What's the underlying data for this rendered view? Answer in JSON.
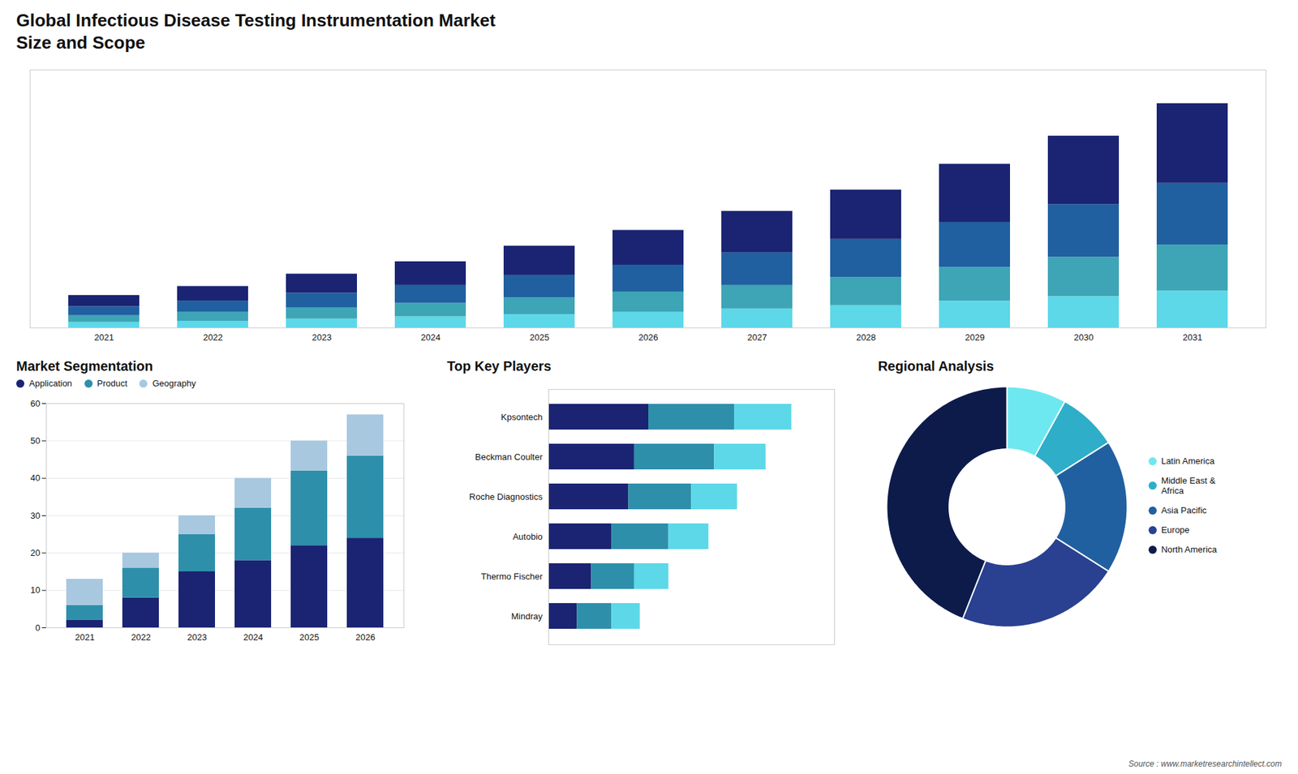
{
  "title": "Global Infectious Disease Testing Instrumentation Market",
  "subtitle": "Size and Scope",
  "annotations": [
    "Source : www.marketresearchintellect.com"
  ],
  "chart_data": [
    {
      "type": "bar",
      "stacked": true,
      "categories": [
        "2021",
        "2022",
        "2023",
        "2024",
        "2025",
        "2026",
        "2027",
        "2028",
        "2029",
        "2030",
        "2031"
      ],
      "series": [
        {
          "color": "#5dd8e8",
          "values": [
            0.5,
            0.6,
            0.8,
            1.0,
            1.2,
            1.4,
            1.7,
            2.0,
            2.4,
            2.8,
            3.3
          ]
        },
        {
          "color": "#3da5b5",
          "values": [
            0.6,
            0.8,
            1.0,
            1.2,
            1.5,
            1.8,
            2.1,
            2.5,
            3.0,
            3.5,
            4.1
          ]
        },
        {
          "color": "#2060a0",
          "values": [
            0.8,
            1.0,
            1.3,
            1.6,
            2.0,
            2.4,
            2.9,
            3.4,
            4.0,
            4.7,
            5.5
          ]
        },
        {
          "color": "#1a2472",
          "values": [
            1.0,
            1.3,
            1.7,
            2.1,
            2.6,
            3.1,
            3.7,
            4.4,
            5.2,
            6.1,
            7.1
          ]
        }
      ],
      "ylim": [
        0,
        23
      ],
      "tick_labels": "x"
    },
    {
      "type": "bar",
      "title": "Market Segmentation",
      "stacked": true,
      "categories": [
        "2021",
        "2022",
        "2023",
        "2024",
        "2025",
        "2026"
      ],
      "series": [
        {
          "name": "Application",
          "color": "#1a2472",
          "values": [
            2,
            8,
            15,
            18,
            22,
            24
          ]
        },
        {
          "name": "Product",
          "color": "#2e8faa",
          "values": [
            4,
            8,
            10,
            14,
            20,
            22
          ]
        },
        {
          "name": "Geography",
          "color": "#a8c8e0",
          "values": [
            7,
            4,
            5,
            8,
            8,
            11
          ]
        }
      ],
      "ylim": [
        0,
        60
      ],
      "yticks": [
        0,
        10,
        20,
        30,
        40,
        50,
        60
      ],
      "grid": true,
      "legend": "top"
    },
    {
      "type": "bar",
      "title": "Top Key Players",
      "orientation": "horizontal",
      "stacked": true,
      "categories": [
        "Kpsontech",
        "Beckman Coulter",
        "Roche Diagnostics",
        "Autobio",
        "Thermo Fischer",
        "Mindray"
      ],
      "series": [
        {
          "color": "#1a2472",
          "values": [
            35,
            30,
            28,
            22,
            15,
            10
          ]
        },
        {
          "color": "#2e8faa",
          "values": [
            30,
            28,
            22,
            20,
            15,
            12
          ]
        },
        {
          "color": "#5dd8e8",
          "values": [
            20,
            18,
            16,
            14,
            12,
            10
          ]
        }
      ],
      "xlim": [
        0,
        100
      ],
      "tick_labels": "y"
    },
    {
      "type": "donut",
      "title": "Regional Analysis",
      "categories": [
        "Latin America",
        "Middle East &\nAfrica",
        "Asia Pacific",
        "Europe",
        "North America"
      ],
      "values": [
        8,
        8,
        18,
        22,
        44
      ],
      "colors": [
        "#6ee8f0",
        "#2eaec8",
        "#2060a0",
        "#2a4090",
        "#0d1b4b"
      ],
      "legend": "right"
    }
  ]
}
